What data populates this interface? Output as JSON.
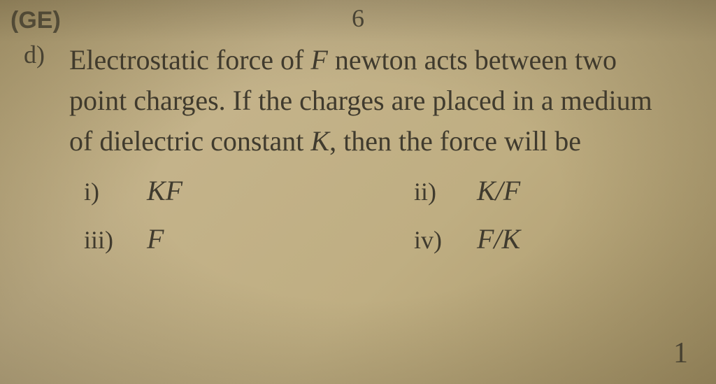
{
  "header": {
    "ge_label": "(GE)",
    "page_number": "6"
  },
  "question": {
    "label": "d)",
    "text_parts": {
      "part1": "Electrostatic force of ",
      "var1": "F",
      "part2": " newton acts between two point charges. If the charges are placed in a medium of dielectric constant ",
      "var2": "K",
      "part3": ", then the force will be"
    }
  },
  "options": {
    "i": {
      "label": "i)",
      "value": "KF"
    },
    "ii": {
      "label": "ii)",
      "value": "K/F"
    },
    "iii": {
      "label": "iii)",
      "value": "F"
    },
    "iv": {
      "label": "iv)",
      "value": "F/K"
    }
  },
  "corner_number": "1",
  "styling": {
    "background_colors": [
      "#b8a678",
      "#c4b38a",
      "#bfae82",
      "#a89668"
    ],
    "text_color": "#4a4536",
    "question_fontsize": 40,
    "option_fontsize": 38,
    "header_fontsize": 36,
    "font_family": "Georgia, Times New Roman, serif"
  }
}
